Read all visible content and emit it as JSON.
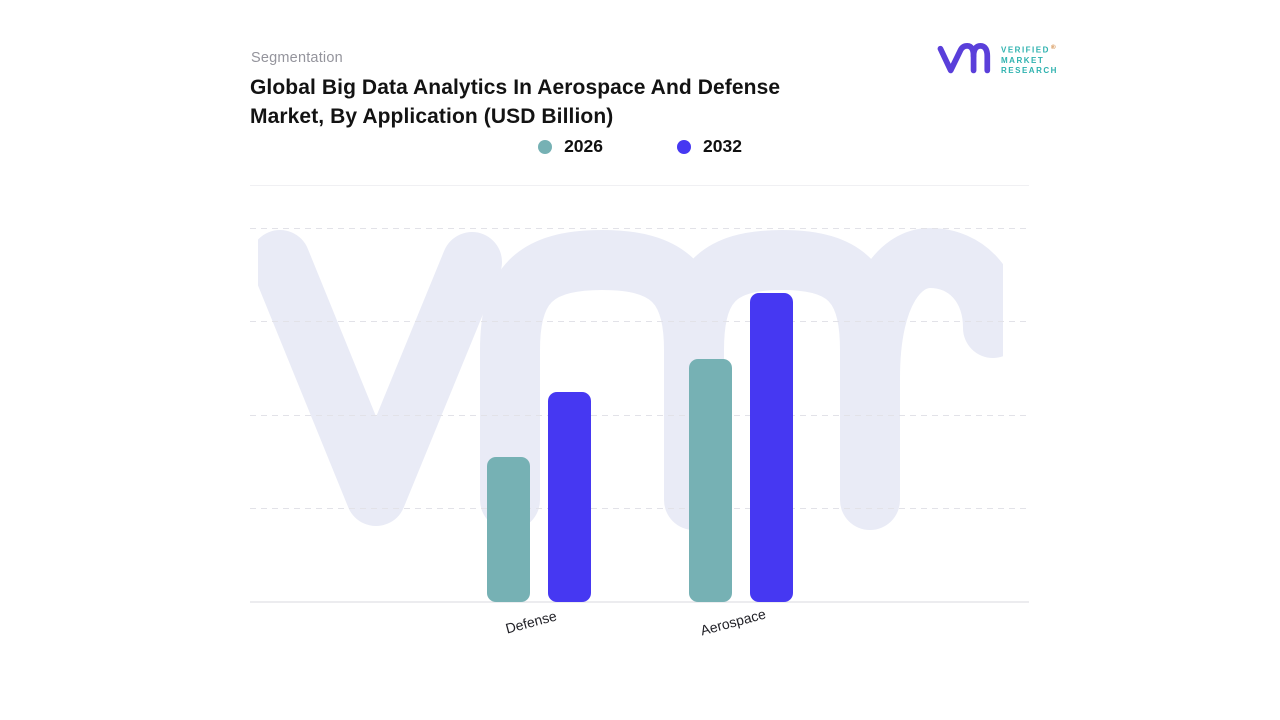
{
  "header": {
    "eyebrow": "Segmentation",
    "title": "Global Big Data Analytics In Aerospace And Defense Market, By Application (USD Billion)"
  },
  "brand": {
    "name_lines": [
      "VERIFIED",
      "MARKET",
      "RESEARCH"
    ],
    "registered_symbol": "®",
    "mark_color": "#5a3fda",
    "wordmark_color": "#2eb2af"
  },
  "chart_data": {
    "type": "bar",
    "title": "Global Big Data Analytics In Aerospace And Defense Market, By Application (USD Billion)",
    "categories": [
      "Defense",
      "Aerospace"
    ],
    "series": [
      {
        "name": "2026",
        "color": "#76b1b4",
        "values": [
          1.55,
          2.6
        ]
      },
      {
        "name": "2032",
        "color": "#4638f2",
        "values": [
          2.25,
          3.3
        ]
      }
    ],
    "xlabel": "",
    "ylabel": "",
    "ylim": [
      0,
      4
    ],
    "yticks_visible": false,
    "grid": "horizontal-dashed",
    "legend_position": "top",
    "note": "Y axis is unlabeled; values are estimated in gridline units (1 unit = one gridline interval)."
  }
}
